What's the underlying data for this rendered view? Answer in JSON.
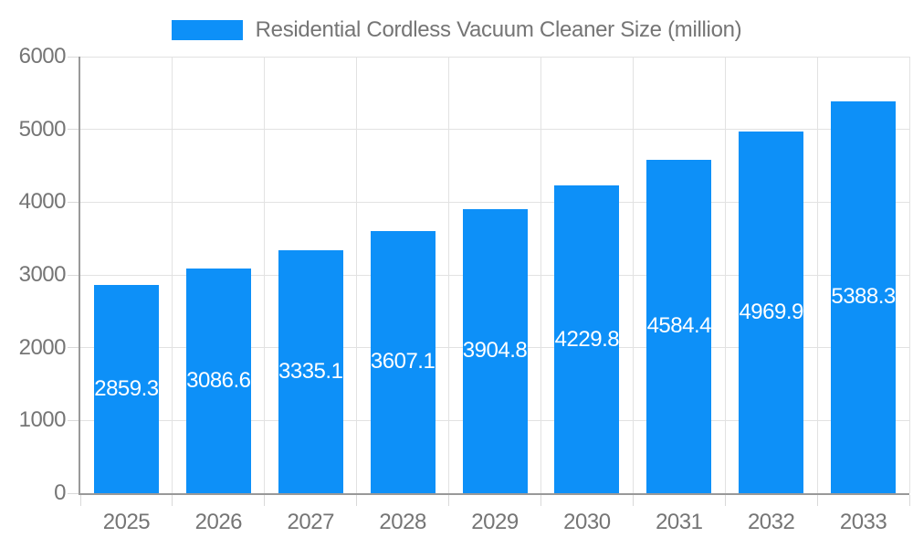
{
  "legend": {
    "series_label": "Residential Cordless Vacuum Cleaner Size (million)"
  },
  "colors": {
    "bar": "#0d90f8",
    "axis_text": "#757575",
    "grid": "#e2e2e2",
    "tick": "#d9d9d9",
    "axis_line": "#999999",
    "value_label": "#ffffff",
    "background": "#ffffff"
  },
  "chart_data": {
    "type": "bar",
    "title": "Residential Cordless Vacuum Cleaner Size (million)",
    "categories": [
      "2025",
      "2026",
      "2027",
      "2028",
      "2029",
      "2030",
      "2031",
      "2032",
      "2033"
    ],
    "values": [
      2859.3,
      3086.6,
      3335.1,
      3607.1,
      3904.8,
      4229.8,
      4584.4,
      4969.9,
      5388.3
    ],
    "value_labels": [
      "2859.3",
      "3086.6",
      "3335.1",
      "3607.1",
      "3904.8",
      "4229.8",
      "4584.4",
      "4969.9",
      "5388.3"
    ],
    "xlabel": "",
    "ylabel": "",
    "ylim": [
      0,
      6000
    ],
    "yticks": [
      0,
      1000,
      2000,
      3000,
      4000,
      5000,
      6000
    ],
    "grid": true,
    "legend_position": "top",
    "value_label_position": "center-inside"
  }
}
